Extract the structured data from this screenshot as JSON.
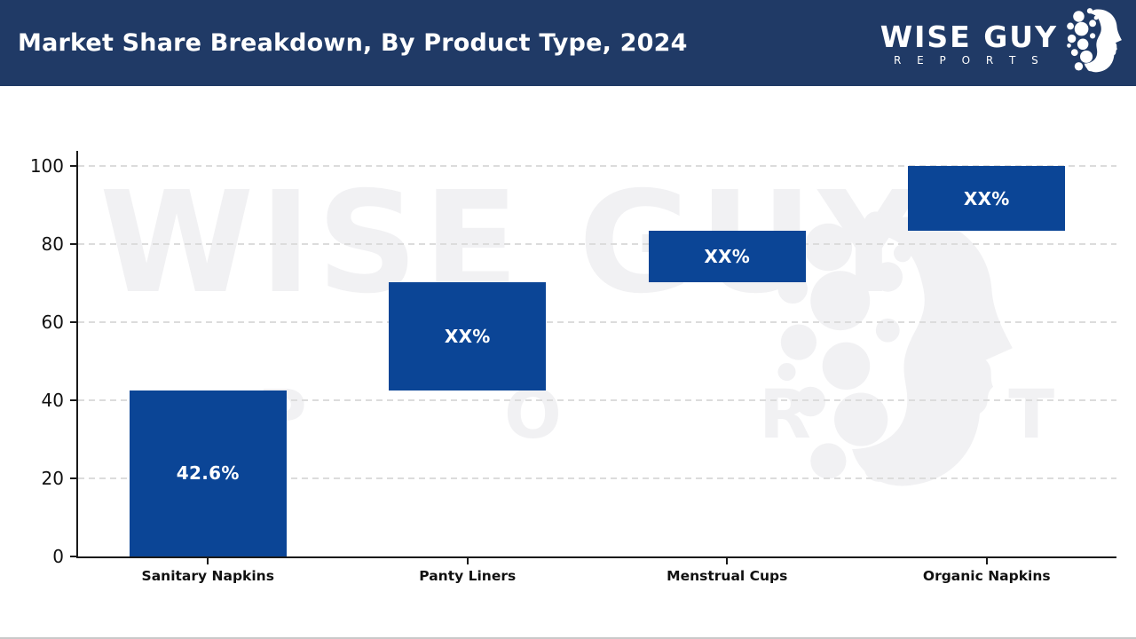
{
  "header": {
    "title": "Market Share Breakdown, By Product Type, 2024",
    "background_color": "#203a66",
    "brand": {
      "line1": "WISE GUY",
      "line2": "R E P O R T S"
    }
  },
  "watermark": {
    "line1": "WISE GUY",
    "line2": "P O R T S"
  },
  "chart_data": {
    "type": "bar",
    "subtype": "waterfall",
    "title": "Market Share Breakdown, By Product Type, 2024",
    "categories": [
      "Sanitary Napkins",
      "Panty Liners",
      "Menstrual Cups",
      "Organic Napkins"
    ],
    "segments": [
      {
        "category": "Sanitary Napkins",
        "start": 0,
        "end": 42.6,
        "label": "42.6%"
      },
      {
        "category": "Panty Liners",
        "start": 42.6,
        "end": 70.2,
        "label": "XX%"
      },
      {
        "category": "Menstrual Cups",
        "start": 70.2,
        "end": 83.3,
        "label": "XX%"
      },
      {
        "category": "Organic Napkins",
        "start": 83.3,
        "end": 100,
        "label": "XX%"
      }
    ],
    "xlabel": "",
    "ylabel": "",
    "ylim": [
      0,
      100
    ],
    "yticks": [
      0,
      20,
      40,
      60,
      80,
      100
    ],
    "grid": "dashed-horizontal",
    "legend": "none",
    "bar_color": "#0b4596",
    "bar_label_color": "#ffffff",
    "axis_color": "#1a1a1a",
    "grid_color": "#dcdcdc"
  }
}
